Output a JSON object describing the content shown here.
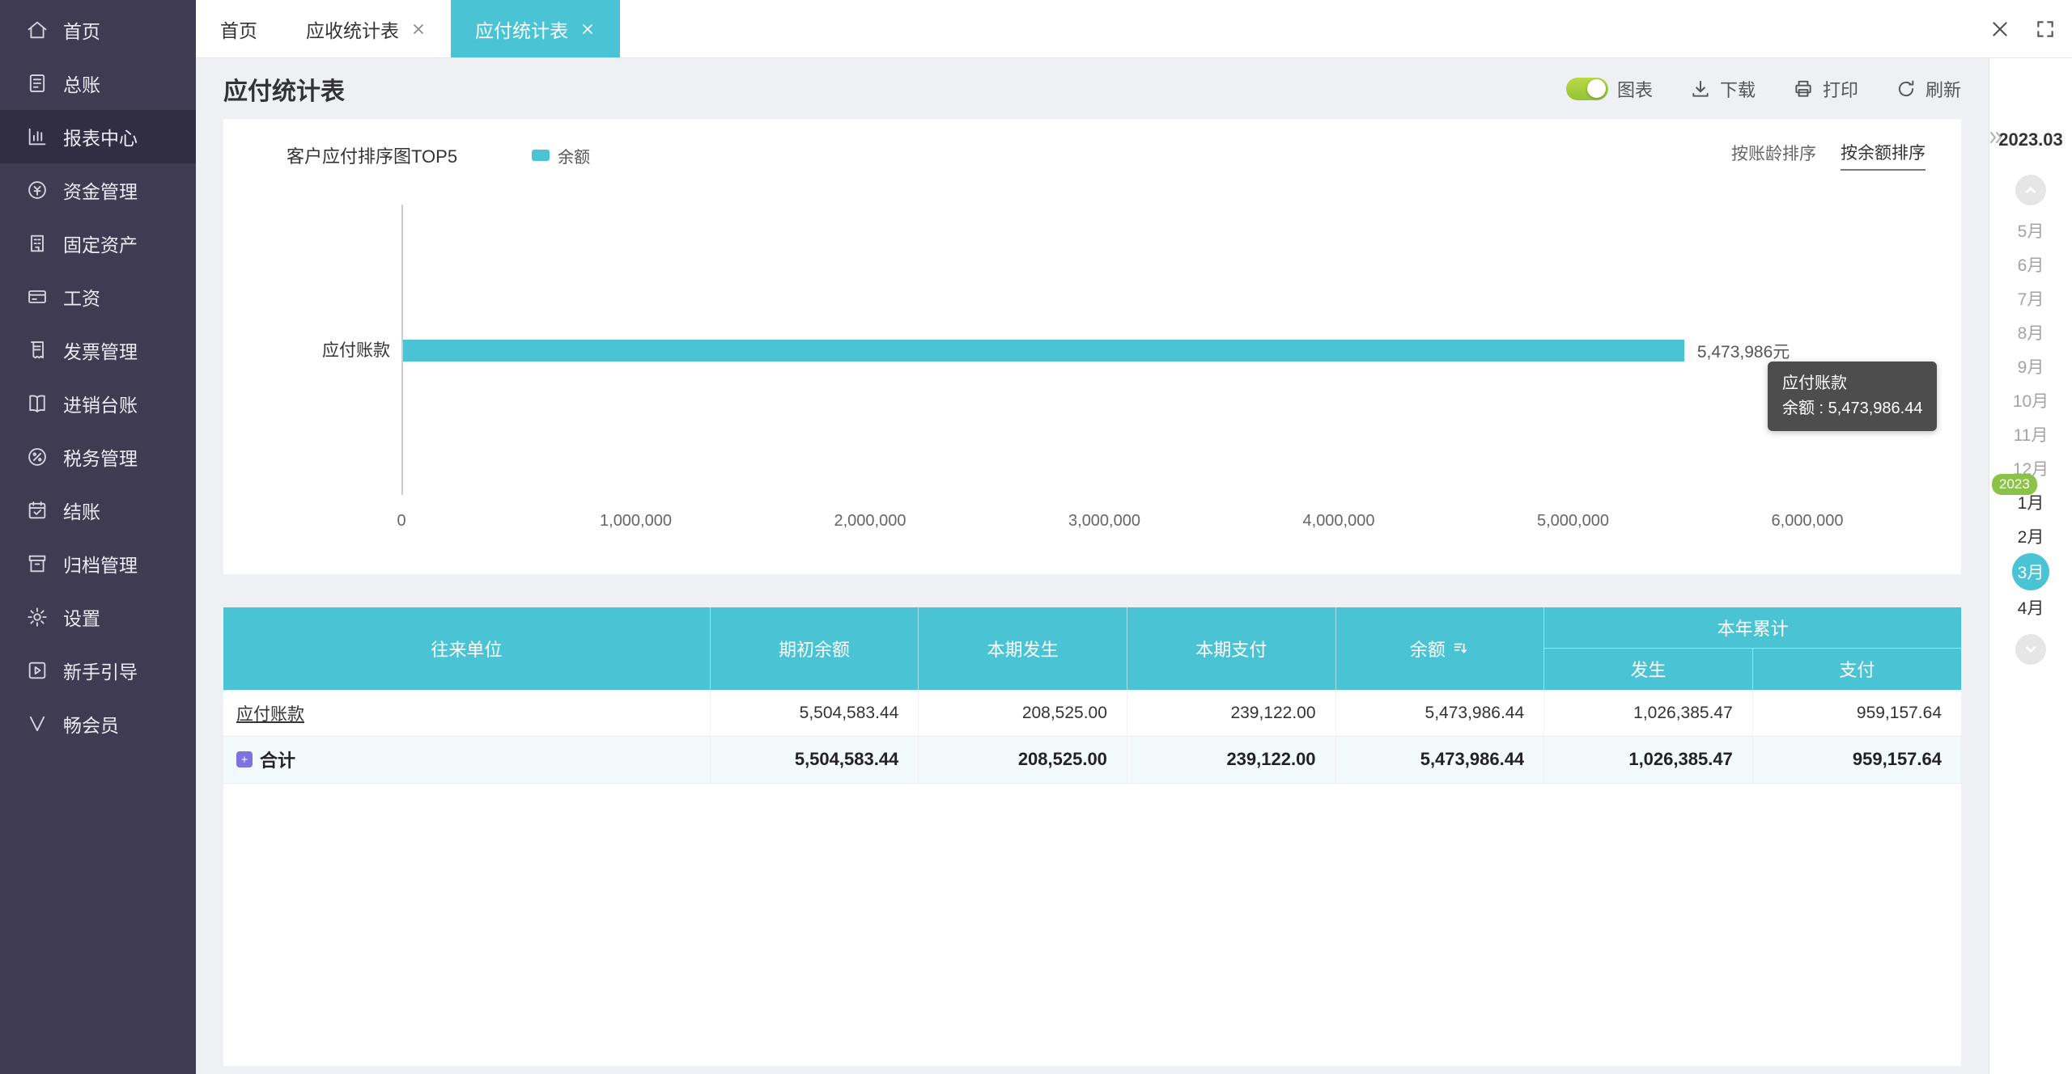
{
  "sidebar": {
    "items": [
      {
        "label": "首页"
      },
      {
        "label": "总账"
      },
      {
        "label": "报表中心",
        "active": true
      },
      {
        "label": "资金管理"
      },
      {
        "label": "固定资产"
      },
      {
        "label": "工资"
      },
      {
        "label": "发票管理"
      },
      {
        "label": "进销台账"
      },
      {
        "label": "税务管理"
      },
      {
        "label": "结账"
      },
      {
        "label": "归档管理"
      },
      {
        "label": "设置"
      },
      {
        "label": "新手引导"
      },
      {
        "label": "畅会员"
      }
    ]
  },
  "tabs": [
    {
      "label": "首页",
      "closable": false,
      "active": false
    },
    {
      "label": "应收统计表",
      "closable": true,
      "active": false
    },
    {
      "label": "应付统计表",
      "closable": true,
      "active": true
    }
  ],
  "page": {
    "title": "应付统计表",
    "tools": {
      "chart": "图表",
      "download": "下载",
      "print": "打印",
      "refresh": "刷新"
    }
  },
  "chart": {
    "title": "客户应付排序图TOP5",
    "legend": "余额",
    "sort_age": "按账龄排序",
    "sort_balance": "按余额排序",
    "category": "应付账款",
    "value_label": "5,473,986元",
    "ticks": [
      "0",
      "1,000,000",
      "2,000,000",
      "3,000,000",
      "4,000,000",
      "5,000,000",
      "6,000,000"
    ],
    "tooltip_title": "应付账款",
    "tooltip_value": "余额 : 5,473,986.44"
  },
  "chart_data": {
    "type": "bar",
    "orientation": "horizontal",
    "title": "客户应付排序图TOP5",
    "categories": [
      "应付账款"
    ],
    "series": [
      {
        "name": "余额",
        "values": [
          5473986.44
        ]
      }
    ],
    "xlim": [
      0,
      6000000
    ],
    "x_ticks": [
      0,
      1000000,
      2000000,
      3000000,
      4000000,
      5000000,
      6000000
    ],
    "bar_color": "#4ac3d5",
    "legend_position": "top-left",
    "grid": false
  },
  "table": {
    "header": {
      "unit": "往来单位",
      "opening": "期初余额",
      "incurred": "本期发生",
      "paid": "本期支付",
      "balance": "余额",
      "ytd": "本年累计",
      "ytd_incurred": "发生",
      "ytd_paid": "支付"
    },
    "row": {
      "name": "应付账款",
      "values": [
        "5,504,583.44",
        "208,525.00",
        "239,122.00",
        "5,473,986.44",
        "1,026,385.47",
        "959,157.64"
      ]
    },
    "total": {
      "label": "合计",
      "values": [
        "5,504,583.44",
        "208,525.00",
        "239,122.00",
        "5,473,986.44",
        "1,026,385.47",
        "959,157.64"
      ]
    }
  },
  "calendar": {
    "current": "2023.03",
    "year_badge": "2023",
    "months": [
      "5月",
      "6月",
      "7月",
      "8月",
      "9月",
      "10月",
      "11月",
      "12月",
      "1月",
      "2月",
      "3月",
      "4月"
    ],
    "active_month": "3月"
  },
  "colors": {
    "accent": "#4ac3d5",
    "sidebar_bg": "#3e3b52",
    "sidebar_active_bg": "#312e44",
    "toggle_on": "#a3cf3b",
    "year_badge": "#8bc34a",
    "tooltip_bg": "#303030"
  }
}
